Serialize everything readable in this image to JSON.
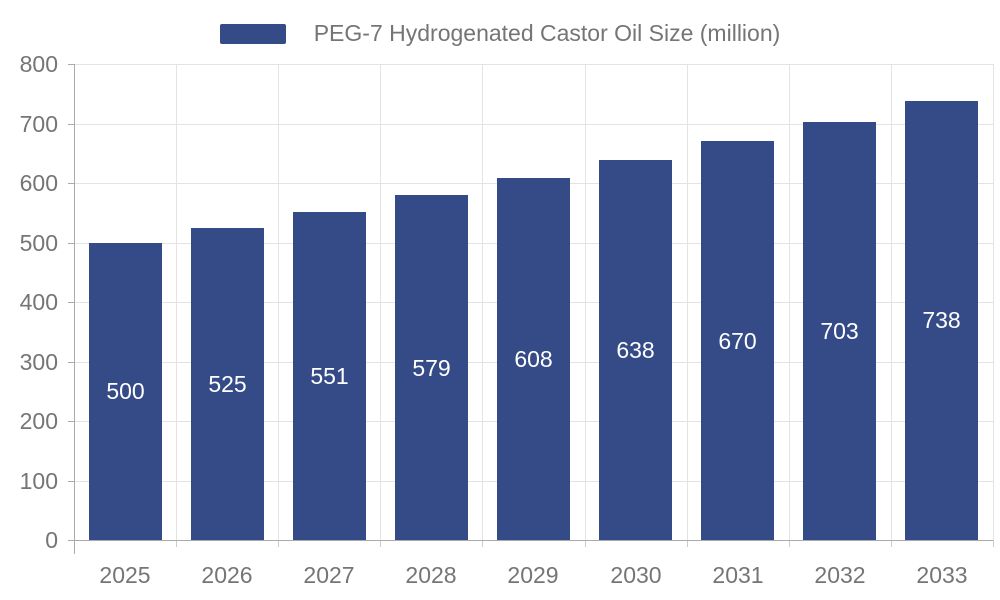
{
  "chart_data": {
    "type": "bar",
    "title": "",
    "legend": {
      "label": "PEG-7 Hydrogenated Castor Oil Size (million)",
      "position": "top"
    },
    "categories": [
      "2025",
      "2026",
      "2027",
      "2028",
      "2029",
      "2030",
      "2031",
      "2032",
      "2033"
    ],
    "series": [
      {
        "name": "PEG-7 Hydrogenated Castor Oil Size (million)",
        "values": [
          500,
          525,
          551,
          579,
          608,
          638,
          670,
          703,
          738
        ]
      }
    ],
    "xlabel": "",
    "ylabel": "",
    "ylim": [
      0,
      800
    ],
    "ytick_step": 100,
    "grid": true,
    "value_label_position": "inside-center",
    "colors": {
      "bar": "#354b87",
      "axis_label": "#757575",
      "legend_text": "#757575",
      "value_label": "#ffffff",
      "grid_line": "#e3e3e3",
      "axis_line": "#aaaaaa",
      "tick_line": "#cccccc",
      "background": "#ffffff"
    }
  }
}
